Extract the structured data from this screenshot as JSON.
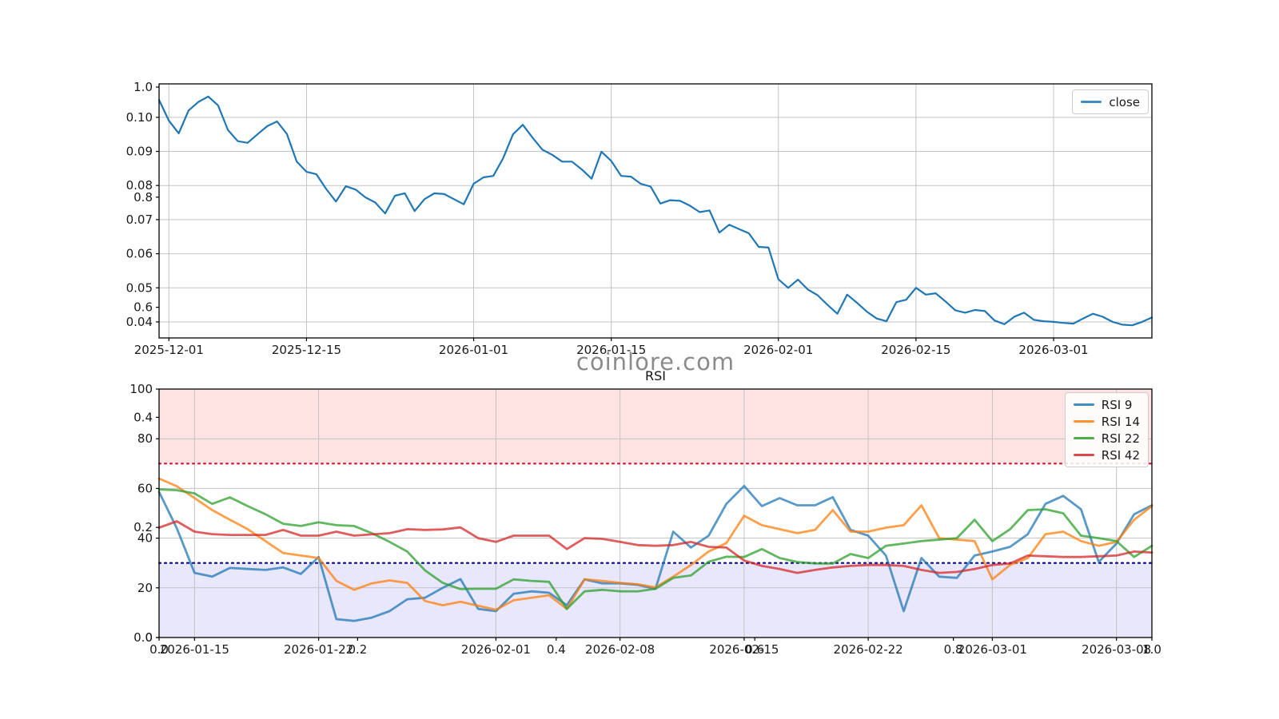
{
  "watermark": "coinlore.com",
  "rsi_title": "RSI",
  "colors": {
    "close": "#1f77b4",
    "rsi9": "#1f77b4",
    "rsi14": "#ff7f0e",
    "rsi22": "#2ca02c",
    "rsi42": "#d62728",
    "overbought_band": "rgba(255,0,0,0.11)",
    "oversold_band": "rgba(45,35,230,0.11)",
    "overbought_line": "#d81535",
    "oversold_line": "#000080",
    "grid": "#c3c3c3",
    "spine": "#000000",
    "tick_text": "#1a1a1a"
  },
  "price_legend": [
    {
      "label": "close",
      "color": "#1f77b4"
    }
  ],
  "rsi_legend": [
    {
      "label": "RSI 9",
      "color": "#1f77b4"
    },
    {
      "label": "RSI 14",
      "color": "#ff7f0e"
    },
    {
      "label": "RSI 22",
      "color": "#2ca02c"
    },
    {
      "label": "RSI 42",
      "color": "#d62728"
    }
  ],
  "twin_axis": {
    "yticks": [
      "1.0",
      "0.8",
      "0.6",
      "0.4",
      "0.2",
      "0.0"
    ],
    "xticks": [
      "0.0",
      "0.2",
      "0.4",
      "0.6",
      "0.8",
      "1.0"
    ]
  },
  "chart_data": [
    {
      "type": "line",
      "title": "",
      "ylabel": "",
      "ylim": [
        0.0353,
        0.1098
      ],
      "grid": true,
      "legend_position": "upper right",
      "yticks": [
        {
          "v": 0.04,
          "label": "0.04"
        },
        {
          "v": 0.05,
          "label": "0.05"
        },
        {
          "v": 0.06,
          "label": "0.06"
        },
        {
          "v": 0.07,
          "label": "0.07"
        },
        {
          "v": 0.08,
          "label": "0.08"
        },
        {
          "v": 0.09,
          "label": "0.09"
        },
        {
          "v": 0.1,
          "label": "0.10"
        }
      ],
      "xticks": [
        {
          "i": 1,
          "label": "2025-12-01"
        },
        {
          "i": 15,
          "label": "2025-12-15"
        },
        {
          "i": 32,
          "label": "2026-01-01"
        },
        {
          "i": 46,
          "label": "2026-01-15"
        },
        {
          "i": 63,
          "label": "2026-02-01"
        },
        {
          "i": 77,
          "label": "2026-02-15"
        },
        {
          "i": 91,
          "label": "2026-03-01"
        }
      ],
      "x_start_date": "2025-11-30",
      "series": [
        {
          "name": "close",
          "color": "#1f77b4",
          "opacity": 1.0,
          "width": 2.2,
          "values": [
            0.1051,
            0.099,
            0.0953,
            0.102,
            0.1045,
            0.1061,
            0.1035,
            0.0963,
            0.093,
            0.0925,
            0.095,
            0.0974,
            0.0988,
            0.0951,
            0.087,
            0.084,
            0.0833,
            0.079,
            0.0753,
            0.0798,
            0.0788,
            0.0765,
            0.075,
            0.0718,
            0.077,
            0.0777,
            0.0725,
            0.076,
            0.0777,
            0.0775,
            0.076,
            0.0745,
            0.0805,
            0.0824,
            0.0828,
            0.088,
            0.095,
            0.0978,
            0.094,
            0.0905,
            0.089,
            0.087,
            0.087,
            0.0847,
            0.082,
            0.0899,
            0.0872,
            0.0828,
            0.0826,
            0.0805,
            0.0797,
            0.0747,
            0.0757,
            0.0755,
            0.0741,
            0.0722,
            0.0727,
            0.0662,
            0.0685,
            0.0672,
            0.066,
            0.062,
            0.0618,
            0.0525,
            0.05,
            0.0524,
            0.0495,
            0.0478,
            0.045,
            0.0424,
            0.048,
            0.0456,
            0.043,
            0.041,
            0.0402,
            0.0458,
            0.0465,
            0.05,
            0.048,
            0.0484,
            0.046,
            0.0434,
            0.0427,
            0.0435,
            0.0432,
            0.0404,
            0.0393,
            0.0415,
            0.0427,
            0.0406,
            0.0402,
            0.04,
            0.0397,
            0.0395,
            0.041,
            0.0424,
            0.0415,
            0.04,
            0.0392,
            0.039,
            0.04,
            0.0413
          ]
        }
      ]
    },
    {
      "type": "line",
      "title": "RSI",
      "ylim": [
        0,
        100
      ],
      "grid": true,
      "legend_position": "upper right",
      "bands": [
        {
          "v0": 70,
          "v1": 100,
          "color": "rgba(255,0,0,0.11)"
        },
        {
          "v0": 0,
          "v1": 30,
          "color": "rgba(45,35,230,0.11)"
        }
      ],
      "hlines": [
        {
          "v": 70,
          "color": "#d81535",
          "style": "dotted"
        },
        {
          "v": 30,
          "color": "#000080",
          "style": "dotted"
        }
      ],
      "yticks": [
        {
          "v": 0,
          "label": "0"
        },
        {
          "v": 20,
          "label": "20"
        },
        {
          "v": 40,
          "label": "40"
        },
        {
          "v": 60,
          "label": "60"
        },
        {
          "v": 80,
          "label": "80"
        },
        {
          "v": 100,
          "label": "100"
        }
      ],
      "xticks": [
        {
          "i": 2,
          "label": "2026-01-15"
        },
        {
          "i": 9,
          "label": "2026-01-22"
        },
        {
          "i": 19,
          "label": "2026-02-01"
        },
        {
          "i": 26,
          "label": "2026-02-08"
        },
        {
          "i": 33,
          "label": "2026-02-15"
        },
        {
          "i": 40,
          "label": "2026-02-22"
        },
        {
          "i": 47,
          "label": "2026-03-01"
        },
        {
          "i": 54,
          "label": "2026-03-08"
        }
      ],
      "x_start_date": "2026-01-13",
      "series": [
        {
          "name": "RSI 9",
          "color": "#1f77b4",
          "opacity": 0.75,
          "width": 2.8,
          "values": [
            58.6,
            44,
            26,
            24.5,
            28,
            27.6,
            27.2,
            28.2,
            25.6,
            32.4,
            7.4,
            6.7,
            8,
            10.6,
            15.4,
            16,
            20,
            23.5,
            11.5,
            10.6,
            17.6,
            18.6,
            18,
            13,
            23.4,
            21.8,
            21.8,
            21.2,
            19.6,
            42.6,
            36.2,
            41,
            53.8,
            61,
            52.9,
            56.1,
            53.2,
            53.2,
            56.5,
            43.3,
            41,
            33,
            10.6,
            32,
            24.5,
            24,
            33,
            34.6,
            36.5,
            41.6,
            53.8,
            57,
            51.6,
            30.4,
            37.8,
            49.6,
            53.2
          ]
        },
        {
          "name": "RSI 14",
          "color": "#ff7f0e",
          "opacity": 0.75,
          "width": 2.8,
          "values": [
            64,
            60.9,
            56.1,
            51.3,
            47.4,
            43.6,
            38.8,
            34,
            33,
            32,
            22.8,
            19.2,
            21.8,
            23,
            22,
            14.7,
            13,
            14.4,
            12.8,
            11.2,
            15,
            16,
            17,
            11.5,
            23.4,
            22.8,
            22,
            21.4,
            20.2,
            24.5,
            29.2,
            34.6,
            38,
            49,
            45.2,
            43.6,
            42,
            43.3,
            51.3,
            42.6,
            42.6,
            44.2,
            45.2,
            53.2,
            40,
            39.4,
            38.8,
            23.4,
            29.2,
            32,
            41.6,
            42.6,
            38.8,
            36.9,
            38.5,
            47.4,
            52.9
          ]
        },
        {
          "name": "RSI 22",
          "color": "#2ca02c",
          "opacity": 0.75,
          "width": 2.8,
          "values": [
            59.6,
            59.3,
            58,
            53.8,
            56.4,
            52.9,
            49.6,
            45.8,
            44.9,
            46.4,
            45.2,
            44.9,
            42,
            38.5,
            34.6,
            27,
            22,
            19.5,
            19.6,
            19.6,
            23.4,
            22.8,
            22.4,
            11.5,
            18.6,
            19.2,
            18.6,
            18.6,
            19.6,
            24,
            25,
            30.5,
            32.5,
            32.4,
            35.6,
            32,
            30.4,
            29.8,
            29.8,
            33.6,
            32,
            36.9,
            37.8,
            38.8,
            39.4,
            40,
            47.4,
            38.8,
            43.6,
            51.3,
            51.6,
            50,
            41,
            40,
            38.8,
            32.4,
            36.9
          ]
        },
        {
          "name": "RSI 42",
          "color": "#d62728",
          "opacity": 0.75,
          "width": 2.8,
          "values": [
            44.2,
            46.8,
            42.6,
            41.6,
            41.3,
            41.3,
            41.3,
            43.3,
            41,
            41,
            42.6,
            41,
            41.5,
            42,
            43.6,
            43.3,
            43.5,
            44.3,
            40,
            38.5,
            41,
            41,
            41,
            35.6,
            40,
            39.7,
            38.5,
            37.2,
            36.9,
            37.2,
            38.5,
            36.5,
            36.2,
            31,
            28.8,
            27.6,
            26,
            27.2,
            28.2,
            28.8,
            29.2,
            29.2,
            28.8,
            27.2,
            26,
            26.4,
            27.6,
            29.2,
            29.8,
            33,
            32.7,
            32.4,
            32.4,
            32.7,
            33,
            34.6,
            34.2
          ]
        }
      ]
    }
  ]
}
